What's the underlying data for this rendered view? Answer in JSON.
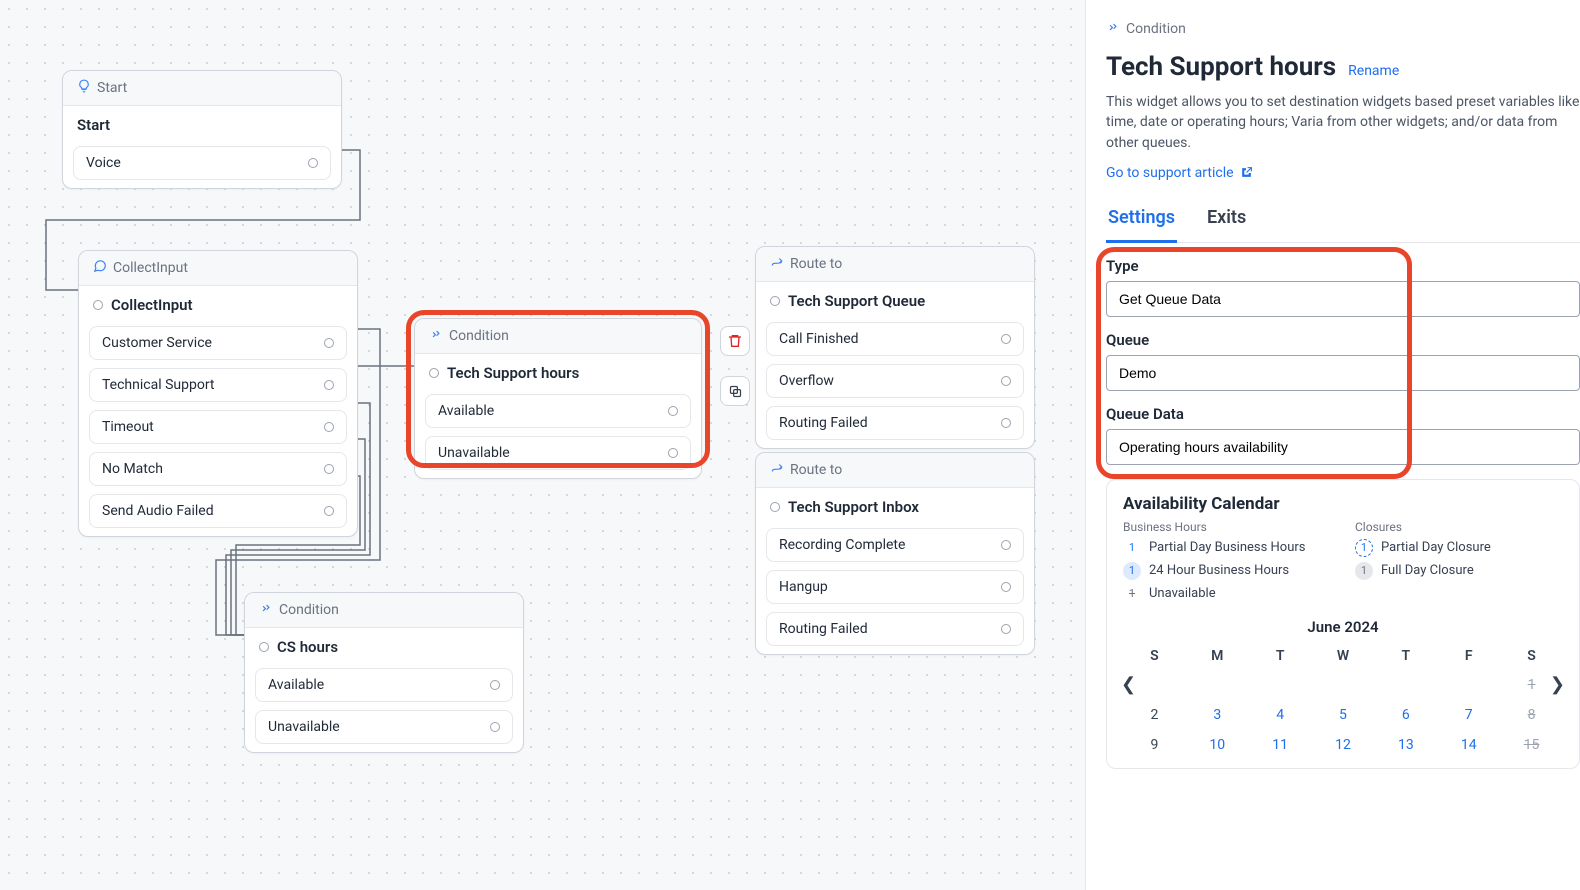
{
  "canvas": {
    "start": {
      "header": "Start",
      "title": "Start",
      "options": [
        "Voice"
      ]
    },
    "collect": {
      "header": "CollectInput",
      "title": "CollectInput",
      "options": [
        "Customer Service",
        "Technical Support",
        "Timeout",
        "No Match",
        "Send Audio Failed"
      ]
    },
    "cond_tech": {
      "header": "Condition",
      "title": "Tech Support hours",
      "options": [
        "Available",
        "Unavailable"
      ]
    },
    "cond_cs": {
      "header": "Condition",
      "title": "CS hours",
      "options": [
        "Available",
        "Unavailable"
      ]
    },
    "route_queue": {
      "header": "Route to",
      "title": "Tech Support Queue",
      "options": [
        "Call Finished",
        "Overflow",
        "Routing Failed"
      ]
    },
    "route_inbox": {
      "header": "Route to",
      "title": "Tech Support Inbox",
      "options": [
        "Recording Complete",
        "Hangup",
        "Routing Failed"
      ]
    }
  },
  "sidebar": {
    "crumb": "Condition",
    "title": "Tech Support hours",
    "rename": "Rename",
    "desc": "This widget allows you to set destination widgets based preset variables like time, date or operating hours; Varia from other widgets; and/or data from other queues.",
    "support": "Go to support article",
    "tabs": {
      "settings": "Settings",
      "exits": "Exits"
    },
    "fields": {
      "type_label": "Type",
      "type_value": "Get Queue Data",
      "queue_label": "Queue",
      "queue_value": "Demo",
      "qdata_label": "Queue Data",
      "qdata_value": "Operating hours availability"
    },
    "calendar": {
      "title": "Availability Calendar",
      "col1": "Business Hours",
      "col2": "Closures",
      "legend": {
        "partial_bh": "Partial Day Business Hours",
        "full_bh": "24 Hour Business Hours",
        "unavail": "Unavailable",
        "partial_cl": "Partial Day Closure",
        "full_cl": "Full Day Closure"
      },
      "month": "June 2024",
      "dow": [
        "S",
        "M",
        "T",
        "W",
        "T",
        "F",
        "S"
      ],
      "weeks": [
        [
          null,
          null,
          null,
          null,
          null,
          null,
          {
            "n": 1,
            "s": true
          }
        ],
        [
          {
            "n": 2
          },
          {
            "n": 3,
            "b": true
          },
          {
            "n": 4,
            "b": true
          },
          {
            "n": 5,
            "b": true
          },
          {
            "n": 6,
            "b": true
          },
          {
            "n": 7,
            "b": true
          },
          {
            "n": 8,
            "s": true
          }
        ],
        [
          {
            "n": 9
          },
          {
            "n": 10,
            "b": true
          },
          {
            "n": 11,
            "b": true
          },
          {
            "n": 12,
            "b": true
          },
          {
            "n": 13,
            "b": true
          },
          {
            "n": 14,
            "b": true
          },
          {
            "n": 15,
            "s": true
          }
        ]
      ]
    }
  },
  "colors": {
    "accent": "#1f6feb",
    "highlight": "#e8452a",
    "border": "#d0d5dd",
    "muted": "#6b7280"
  }
}
